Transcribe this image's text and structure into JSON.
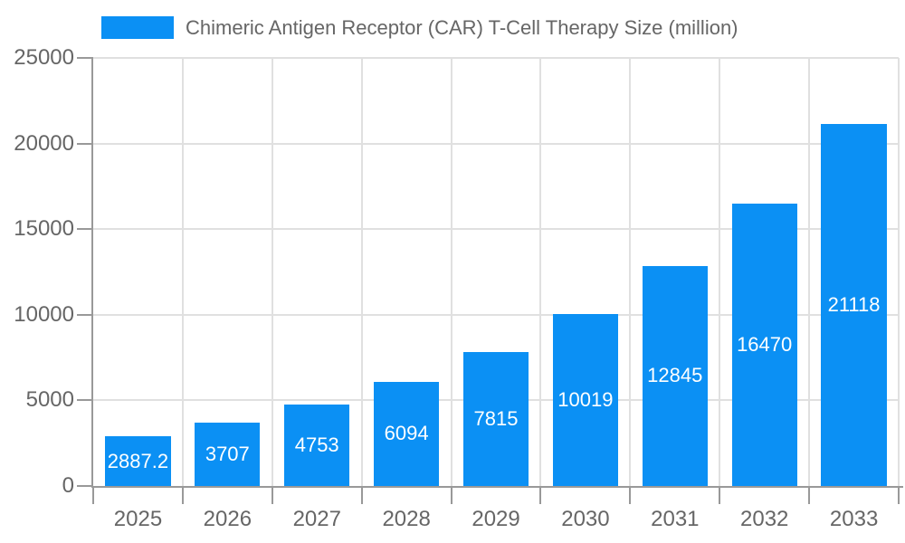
{
  "legend": {
    "label": "Chimeric Antigen Receptor (CAR) T-Cell Therapy Size (million)"
  },
  "colors": {
    "bar": "#0b90f4",
    "text": "#666666",
    "axis": "#999999",
    "grid": "#e0e0e0",
    "value_label": "#ffffff",
    "background": "#ffffff"
  },
  "chart_data": {
    "type": "bar",
    "title": "Chimeric Antigen Receptor (CAR) T-Cell Therapy Size (million)",
    "categories": [
      "2025",
      "2026",
      "2027",
      "2028",
      "2029",
      "2030",
      "2031",
      "2032",
      "2033"
    ],
    "values": [
      2887.2,
      3707,
      4753,
      6094,
      7815,
      10019,
      12845,
      16470,
      21118
    ],
    "value_labels": [
      "2887.2",
      "3707",
      "4753",
      "6094",
      "7815",
      "10019",
      "12845",
      "16470",
      "21118"
    ],
    "xlabel": "",
    "ylabel": "",
    "ylim": [
      0,
      25000
    ],
    "ytick_interval": 5000,
    "yticks": [
      "0",
      "5000",
      "10000",
      "15000",
      "20000",
      "25000"
    ],
    "grid": true,
    "legend_position": "top-left",
    "value_label_position": "inside-center"
  }
}
